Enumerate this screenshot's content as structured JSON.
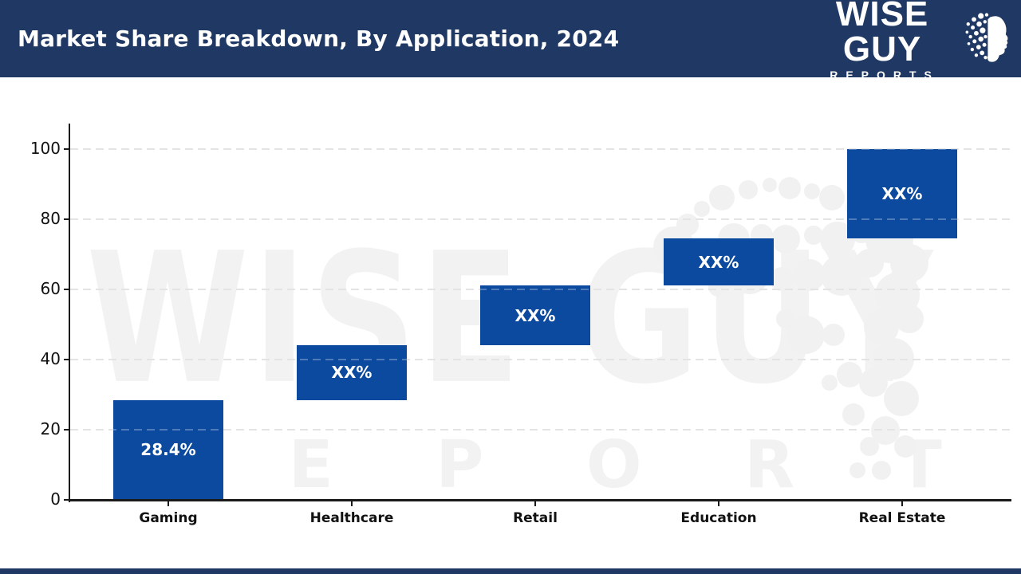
{
  "header": {
    "title": "Market Share Breakdown, By Application, 2024",
    "bg_color": "#1f3864",
    "logo": {
      "line1": "WISE GUY",
      "line2": "REPORTS"
    }
  },
  "watermark": {
    "line1": "WISE GUY",
    "line2": "REPORTS"
  },
  "footer": {
    "bg_color": "#1f3864"
  },
  "chart_data": {
    "type": "bar",
    "subtype": "waterfall",
    "title": "Market Share Breakdown, By Application, 2024",
    "xlabel": "",
    "ylabel": "",
    "categories": [
      "Gaming",
      "Healthcare",
      "Retail",
      "Education",
      "Real Estate"
    ],
    "segments": [
      {
        "category": "Gaming",
        "start": 0,
        "end": 28.4,
        "label": "28.4%"
      },
      {
        "category": "Healthcare",
        "start": 28.4,
        "end": 43.9,
        "label": "XX%"
      },
      {
        "category": "Retail",
        "start": 43.9,
        "end": 61.0,
        "label": "XX%"
      },
      {
        "category": "Education",
        "start": 61.0,
        "end": 74.4,
        "label": "XX%"
      },
      {
        "category": "Real Estate",
        "start": 74.4,
        "end": 100.0,
        "label": "XX%"
      }
    ],
    "y_ticks": [
      0,
      20,
      40,
      60,
      80,
      100
    ],
    "ylim": [
      0,
      107
    ],
    "grid": "horizontal-dashed",
    "legend": "none",
    "bar_color": "#0b4a9e",
    "bar_label_color": "#ffffff",
    "axis_color": "#1a1a1a"
  }
}
